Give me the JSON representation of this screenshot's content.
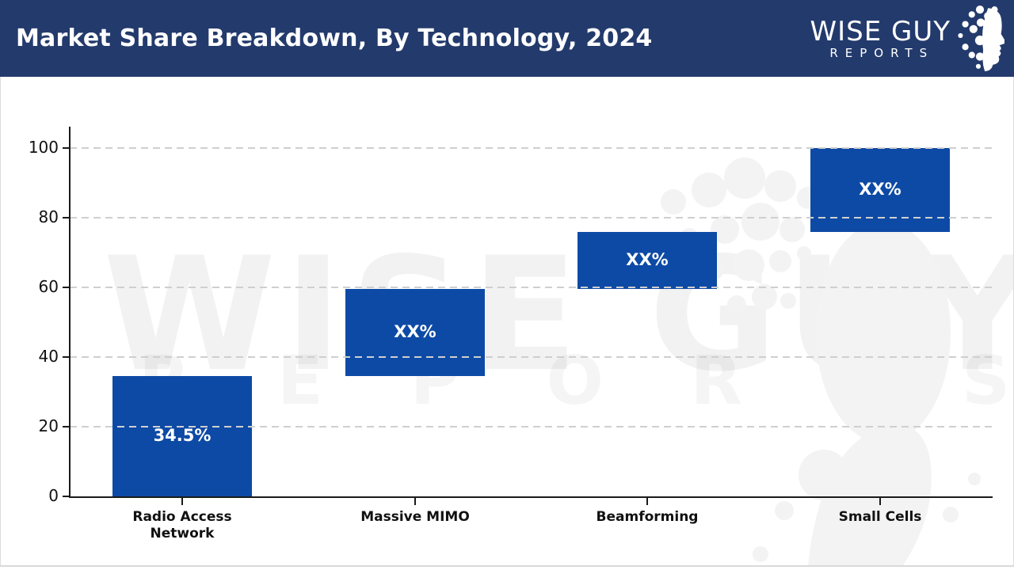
{
  "header": {
    "title": "Market Share Breakdown, By Technology, 2024",
    "logo": {
      "wordmark": "WISE GUY",
      "subtitle": "REPORTS"
    }
  },
  "watermark": {
    "wordmark": "WISE GUY",
    "subtitle": "R E P O R T S"
  },
  "colors": {
    "header_bg": "#233A6C",
    "bar": "#0D4AA5",
    "grid": "#CFCFCF",
    "axis": "#1A1A1A",
    "bar_label": "#FFFFFF",
    "watermark": "#F3F3F3"
  },
  "chart_data": {
    "type": "bar",
    "subtype": "waterfall",
    "title": "Market Share Breakdown, By Technology, 2024",
    "categories": [
      "Radio Access Network",
      "Massive MIMO",
      "Beamforming",
      "Small Cells"
    ],
    "bars": [
      {
        "category": "Radio Access Network",
        "start": 0,
        "end": 34.5,
        "label": "34.5%"
      },
      {
        "category": "Massive MIMO",
        "start": 34.5,
        "end": 59.5,
        "label": "XX%"
      },
      {
        "category": "Beamforming",
        "start": 59.5,
        "end": 76,
        "label": "XX%"
      },
      {
        "category": "Small Cells",
        "start": 76,
        "end": 100,
        "label": "XX%"
      }
    ],
    "ylim": [
      0,
      105
    ],
    "yticks": [
      0,
      20,
      40,
      60,
      80,
      100
    ],
    "xlabel": "",
    "ylabel": "",
    "grid": "horizontal-dashed",
    "legend": "none"
  }
}
